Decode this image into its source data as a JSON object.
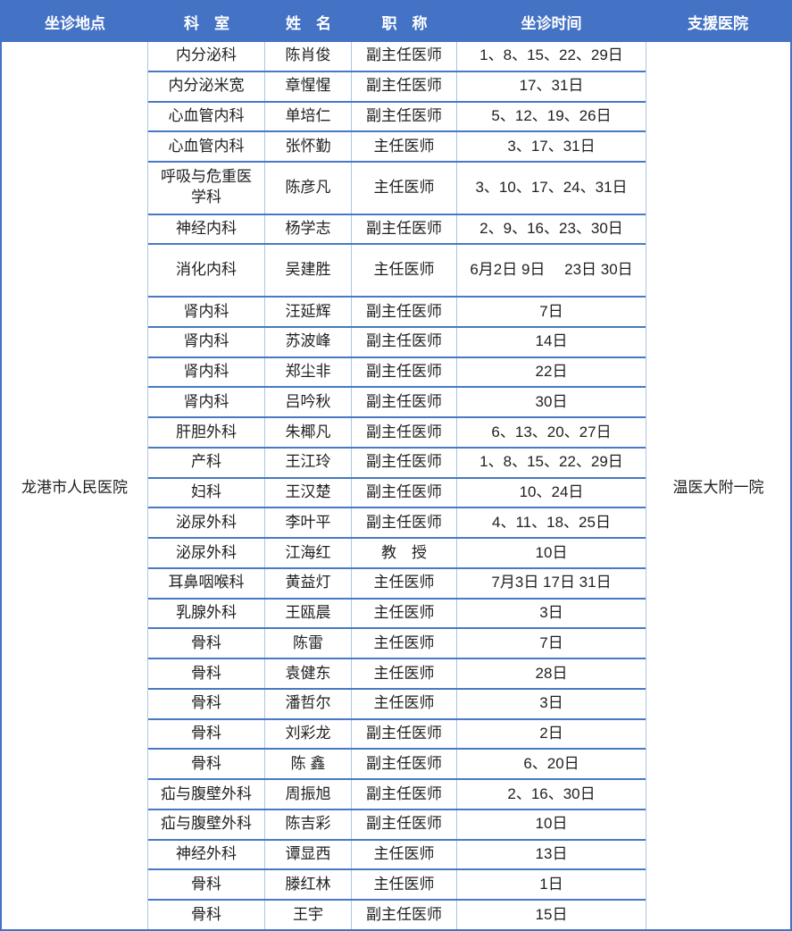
{
  "colors": {
    "header_bg": "#4472C4",
    "header_text": "#FFFFFF",
    "outer_border": "#4472C4",
    "row_border": "#4779C4",
    "column_border": "#AFC4E8",
    "body_text": "#1F1F1F"
  },
  "table": {
    "headers": {
      "location": "坐诊地点",
      "department": "科　室",
      "name": "姓　名",
      "title": "职　称",
      "time": "坐诊时间",
      "support": "支援医院"
    },
    "location": "龙港市人民医院",
    "support_hospital": "温医大附一院",
    "rows": [
      {
        "dept": "内分泌科",
        "name": "陈肖俊",
        "title": "副主任医师",
        "time": "1、8、15、22、29日",
        "tall": false
      },
      {
        "dept": "内分泌米宽",
        "name": "章惺惺",
        "title": "副主任医师",
        "time": "17、31日",
        "tall": false
      },
      {
        "dept": "心血管内科",
        "name": "单培仁",
        "title": "副主任医师",
        "time": "5、12、19、26日",
        "tall": false
      },
      {
        "dept": "心血管内科",
        "name": "张怀勤",
        "title": "主任医师",
        "time": "3、17、31日",
        "tall": false
      },
      {
        "dept": "呼吸与危重医学科",
        "name": "陈彦凡",
        "title": "主任医师",
        "time": "3、10、17、24、31日",
        "tall": true
      },
      {
        "dept": "神经内科",
        "name": "杨学志",
        "title": "副主任医师",
        "time": "2、9、16、23、30日",
        "tall": false
      },
      {
        "dept": "消化内科",
        "name": "吴建胜",
        "title": "主任医师",
        "time": "6月2日 9日　 23日 30日",
        "tall": true
      },
      {
        "dept": "肾内科",
        "name": "汪延辉",
        "title": "副主任医师",
        "time": "7日",
        "tall": false
      },
      {
        "dept": "肾内科",
        "name": "苏波峰",
        "title": "副主任医师",
        "time": "14日",
        "tall": false
      },
      {
        "dept": "肾内科",
        "name": "郑尘非",
        "title": "副主任医师",
        "time": "22日",
        "tall": false
      },
      {
        "dept": "肾内科",
        "name": "吕吟秋",
        "title": "副主任医师",
        "time": "30日",
        "tall": false
      },
      {
        "dept": "肝胆外科",
        "name": "朱椰凡",
        "title": "副主任医师",
        "time": "6、13、20、27日",
        "tall": false
      },
      {
        "dept": "产科",
        "name": "王江玲",
        "title": "副主任医师",
        "time": "1、8、15、22、29日",
        "tall": false
      },
      {
        "dept": "妇科",
        "name": "王汉楚",
        "title": "副主任医师",
        "time": "10、24日",
        "tall": false
      },
      {
        "dept": "泌尿外科",
        "name": "李叶平",
        "title": "副主任医师",
        "time": "4、11、18、25日",
        "tall": false
      },
      {
        "dept": "泌尿外科",
        "name": "江海红",
        "title": "教　授",
        "time": "10日",
        "tall": false
      },
      {
        "dept": "耳鼻咽喉科",
        "name": "黄益灯",
        "title": "主任医师",
        "time": "7月3日 17日 31日",
        "tall": false
      },
      {
        "dept": "乳腺外科",
        "name": "王瓯晨",
        "title": "主任医师",
        "time": "3日",
        "tall": false
      },
      {
        "dept": "骨科",
        "name": "陈雷",
        "title": "主任医师",
        "time": "7日",
        "tall": false
      },
      {
        "dept": "骨科",
        "name": "袁健东",
        "title": "主任医师",
        "time": "28日",
        "tall": false
      },
      {
        "dept": "骨科",
        "name": "潘哲尔",
        "title": "主任医师",
        "time": "3日",
        "tall": false
      },
      {
        "dept": "骨科",
        "name": "刘彩龙",
        "title": "副主任医师",
        "time": "2日",
        "tall": false
      },
      {
        "dept": "骨科",
        "name": "陈 鑫",
        "title": "副主任医师",
        "time": "6、20日",
        "tall": false
      },
      {
        "dept": "疝与腹壁外科",
        "name": "周振旭",
        "title": "副主任医师",
        "time": "2、16、30日",
        "tall": false
      },
      {
        "dept": "疝与腹壁外科",
        "name": "陈吉彩",
        "title": "副主任医师",
        "time": "10日",
        "tall": false
      },
      {
        "dept": "神经外科",
        "name": "谭显西",
        "title": "主任医师",
        "time": "13日",
        "tall": false
      },
      {
        "dept": "骨科",
        "name": "滕红林",
        "title": "主任医师",
        "time": "1日",
        "tall": false
      },
      {
        "dept": "骨科",
        "name": "王宇",
        "title": "副主任医师",
        "time": "15日",
        "tall": false
      }
    ]
  }
}
